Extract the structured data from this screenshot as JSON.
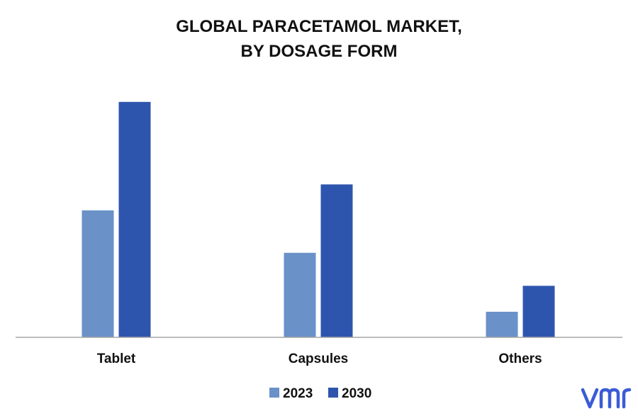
{
  "chart_data": {
    "type": "bar",
    "title_lines": [
      "GLOBAL PARACETAMOL MARKET,",
      "BY DOSAGE FORM"
    ],
    "categories": [
      "Tablet",
      "Capsules",
      "Others"
    ],
    "series": [
      {
        "name": "2023",
        "values": [
          5.4,
          3.6,
          1.1
        ],
        "color": "#6a91c8"
      },
      {
        "name": "2030",
        "values": [
          10.0,
          6.5,
          2.2
        ],
        "color": "#2e55ae"
      }
    ],
    "ylim": [
      0,
      11
    ],
    "grid": false,
    "legend_position": "bottom-center",
    "axis_color": "#a6a6a6",
    "bar_edge_color": "#ffffff"
  },
  "logo": {
    "text": "vmr",
    "color": "#3b5bd6"
  }
}
